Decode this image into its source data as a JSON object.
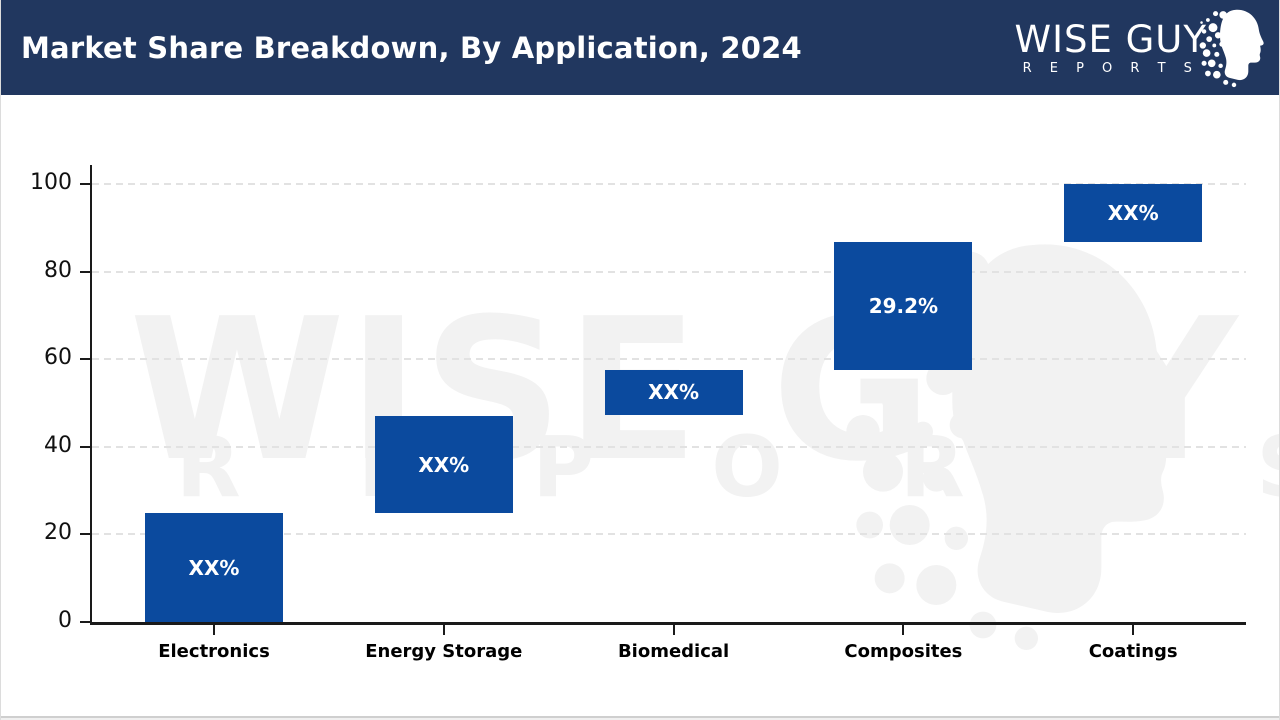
{
  "header": {
    "title": "Market Share Breakdown, By Application, 2024",
    "logo": {
      "line1": "WISE GUY",
      "line2": "R E P O R T S"
    }
  },
  "watermark": {
    "line1": "WISE GUY",
    "line2": "R E P O R T S"
  },
  "colors": {
    "header_bg": "#21375f",
    "bar": "#0b4a9e",
    "bar_label": "#ffffff",
    "axis": "#1a1a1a",
    "gridline": "#e2e2e2",
    "watermark": "#f2f2f2"
  },
  "chart_data": {
    "type": "bar",
    "subtype": "waterfall-floating-bars",
    "title": "Market Share Breakdown, By Application, 2024",
    "categories": [
      "Electronics",
      "Energy Storage",
      "Biomedical",
      "Composites",
      "Coatings"
    ],
    "segments": [
      {
        "category": "Electronics",
        "start": 0,
        "end": 24.8,
        "label": "XX%"
      },
      {
        "category": "Energy Storage",
        "start": 24.8,
        "end": 47.0,
        "label": "XX%"
      },
      {
        "category": "Biomedical",
        "start": 47.3,
        "end": 57.5,
        "label": "XX%"
      },
      {
        "category": "Composites",
        "start": 57.5,
        "end": 86.7,
        "label": "29.2%",
        "value": 29.2
      },
      {
        "category": "Coatings",
        "start": 86.8,
        "end": 100,
        "label": "XX%"
      }
    ],
    "xlabel": "",
    "ylabel": "",
    "y_ticks": [
      0,
      20,
      40,
      60,
      80,
      100
    ],
    "ylim": [
      0,
      105
    ],
    "grid": "horizontal-dashed",
    "legend": "none"
  }
}
